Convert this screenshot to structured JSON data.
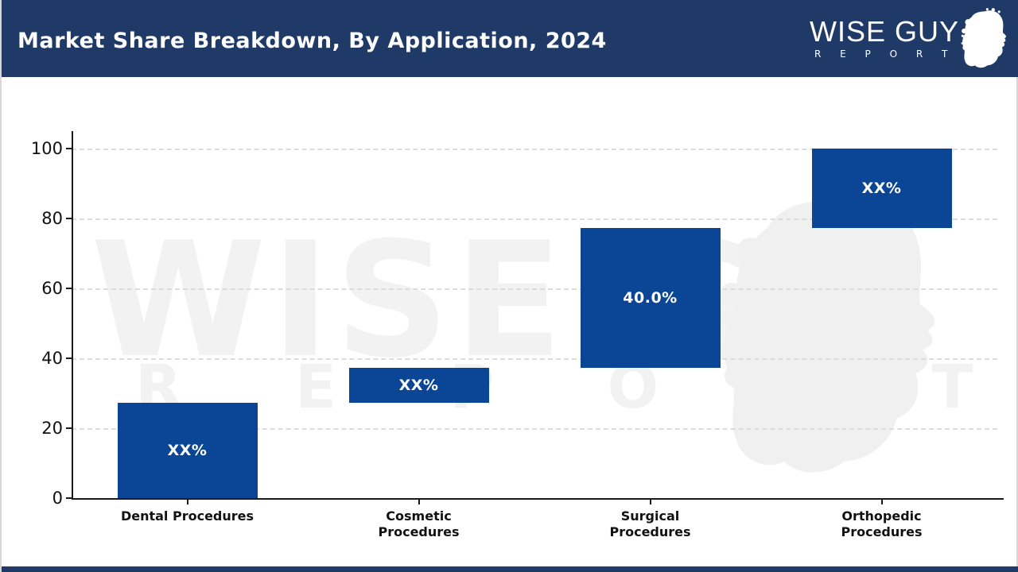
{
  "header": {
    "title": "Market Share Breakdown, By Application, 2024",
    "logo": {
      "main": "WISE GUY",
      "sub": "R E P O R T S",
      "face_icon": "dotted-head-profile-icon"
    }
  },
  "watermark": {
    "main": "WISE GU",
    "sub": "R E P O R T S",
    "face_icon": "dotted-head-profile-icon"
  },
  "chart_data": {
    "type": "bar",
    "subtype": "waterfall",
    "title": "Market Share Breakdown, By Application, 2024",
    "categories": [
      "Dental Procedures",
      "Cosmetic Procedures",
      "Surgical Procedures",
      "Orthopedic Procedures"
    ],
    "category_label_lines": [
      [
        "Dental Procedures"
      ],
      [
        "Cosmetic",
        "Procedures"
      ],
      [
        "Surgical",
        "Procedures"
      ],
      [
        "Orthopedic",
        "Procedures"
      ]
    ],
    "segments": [
      {
        "category": "Dental Procedures",
        "start": 0,
        "end": 27.3,
        "label": "XX%"
      },
      {
        "category": "Cosmetic Procedures",
        "start": 27.3,
        "end": 37.3,
        "label": "XX%"
      },
      {
        "category": "Surgical Procedures",
        "start": 37.3,
        "end": 77.3,
        "label": "40.0%"
      },
      {
        "category": "Orthopedic Procedures",
        "start": 77.3,
        "end": 100,
        "label": "XX%"
      }
    ],
    "yticks": [
      0,
      20,
      40,
      60,
      80,
      100
    ],
    "ylim": [
      0,
      105
    ],
    "xlabel": "",
    "ylabel": "",
    "legend": "none",
    "grid": "dashed-horizontal",
    "bar_color": "#0a4596",
    "grid_color": "#dcdcdc",
    "axis_color": "#1a1a1a",
    "label_color_inside": "#ffffff"
  },
  "colors": {
    "header_bg": "#203a68",
    "footer_bg": "#203a68",
    "canvas_bg": "#ffffff",
    "watermark": "#f2f2f2"
  }
}
